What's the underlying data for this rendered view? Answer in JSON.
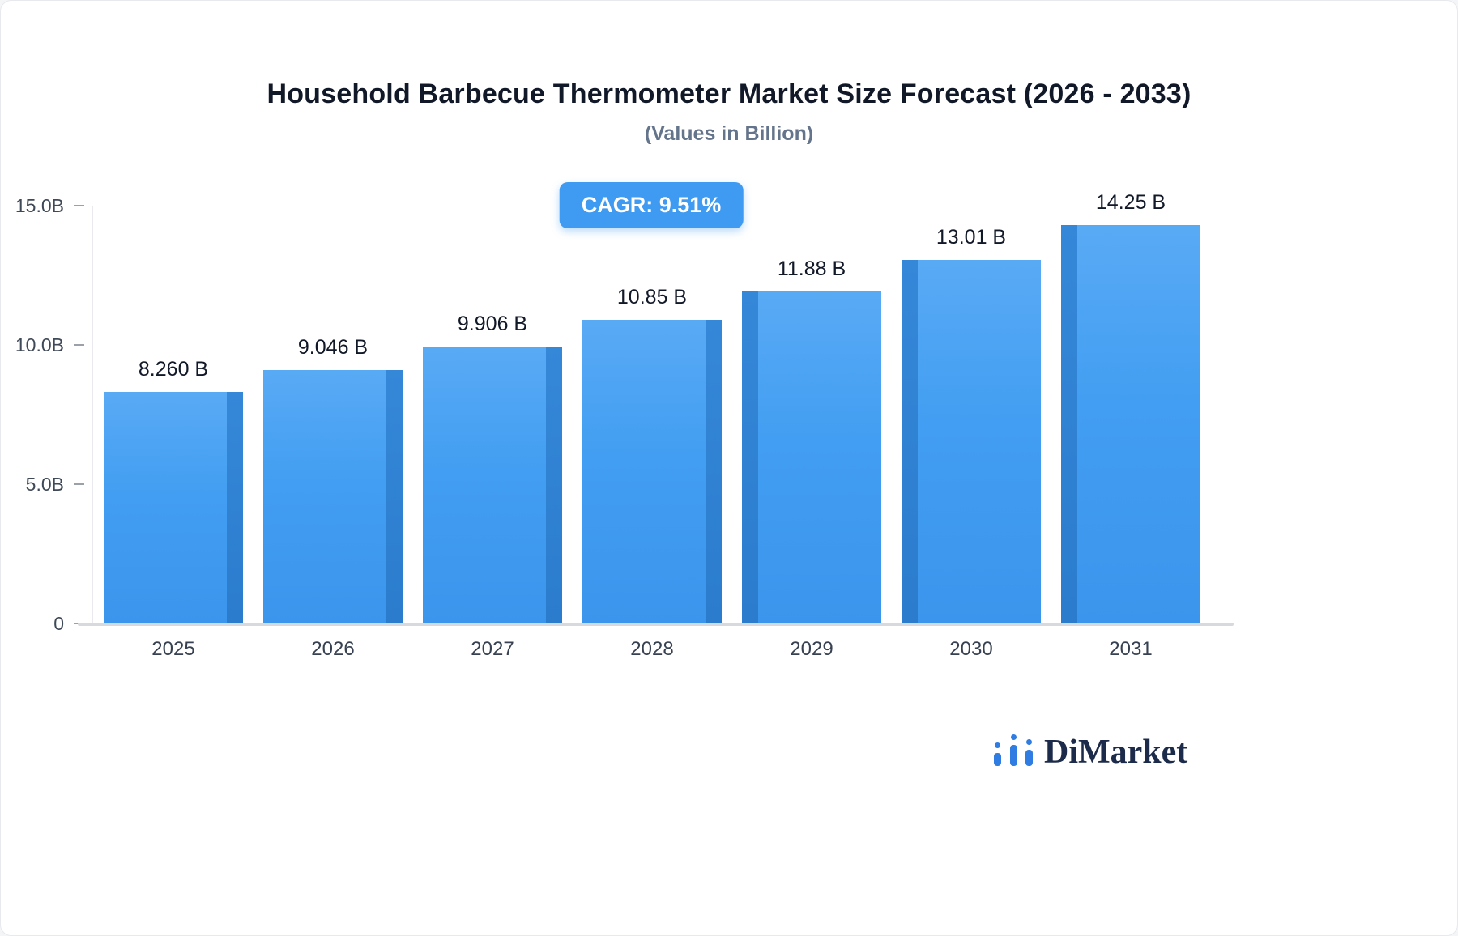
{
  "title": "Household Barbecue Thermometer Market Size Forecast (2026 - 2033)",
  "subtitle": "(Values in Billion)",
  "cagr_badge": "CAGR: 9.51%",
  "colors": {
    "bar_main": "#3D9BF0",
    "bar_side": "#2B7CCD",
    "badge_bg": "#3F9BF1",
    "logo_blue": "#2F7DE2",
    "logo_text": "#1C2B4A"
  },
  "y_axis": {
    "ticks": [
      "15.0B",
      "10.0B",
      "5.0B",
      "0"
    ]
  },
  "chart_data": {
    "type": "bar",
    "categories": [
      "2025",
      "2026",
      "2027",
      "2028",
      "2029",
      "2030",
      "2031"
    ],
    "values": [
      8.26,
      9.046,
      9.906,
      10.85,
      11.88,
      13.01,
      14.25
    ],
    "labels": [
      "8.260 B",
      "9.046 B",
      "9.906 B",
      "10.85 B",
      "11.88 B",
      "13.01 B",
      "14.25 B"
    ],
    "title": "Household Barbecue Thermometer Market Size Forecast (2026 - 2033)",
    "subtitle": "(Values in Billion)",
    "xlabel": "",
    "ylabel": "",
    "ylim": [
      0,
      15
    ],
    "y_tick_labels": [
      "0",
      "5.0B",
      "10.0B",
      "15.0B"
    ],
    "legend": "none",
    "grid": "off",
    "annotation": "CAGR: 9.51%"
  },
  "logo": {
    "text": "DiMarket"
  }
}
